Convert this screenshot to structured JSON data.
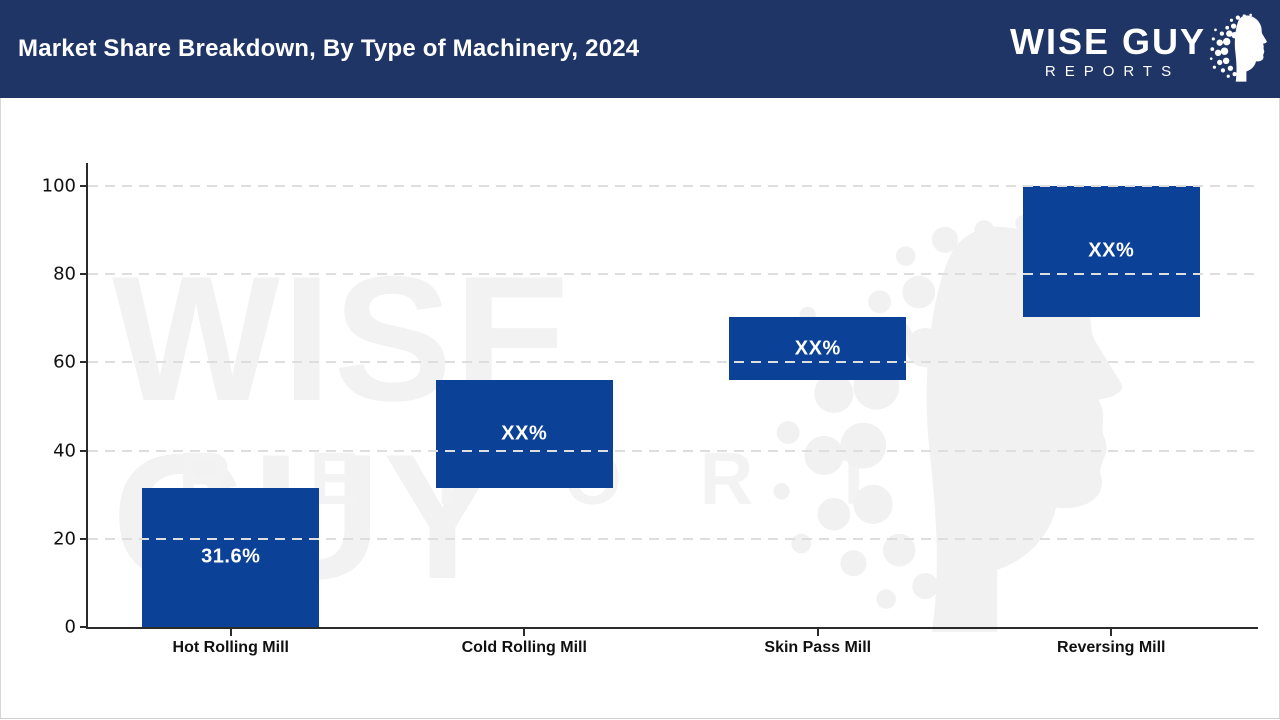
{
  "header": {
    "title": "Market Share Breakdown, By Type of Machinery, 2024",
    "logo": {
      "line1": "WISE GUY",
      "line2": "REPORTS"
    }
  },
  "watermark": {
    "line1": "WISE GUY",
    "line2": "REPORTS"
  },
  "colors": {
    "header_bg": "#1f3565",
    "bar": "#0b4298",
    "bar_label": "#ffffff",
    "gridline": "#dedede",
    "axis": "#2b2b2b",
    "watermark": "#f2f2f2"
  },
  "chart_data": {
    "type": "bar",
    "subtype": "waterfall",
    "title": "Market Share Breakdown, By Type of Machinery, 2024",
    "categories": [
      "Hot Rolling Mill",
      "Cold Rolling Mill",
      "Skin Pass Mill",
      "Reversing Mill"
    ],
    "segments": [
      {
        "category": "Hot Rolling Mill",
        "start": 0,
        "end": 31.6,
        "label": "31.6%"
      },
      {
        "category": "Cold Rolling Mill",
        "start": 31.6,
        "end": 55.9,
        "label": "XX%"
      },
      {
        "category": "Skin Pass Mill",
        "start": 55.9,
        "end": 70.3,
        "label": "XX%"
      },
      {
        "category": "Reversing Mill",
        "start": 70.3,
        "end": 100,
        "label": "XX%"
      }
    ],
    "xlabel": "",
    "ylabel": "",
    "yticks": [
      0,
      20,
      40,
      60,
      80,
      100
    ],
    "ylim": [
      0,
      105
    ],
    "grid": "horizontal-dashed",
    "legend": "none",
    "bar_color": "#0b4298",
    "bar_label_color": "#ffffff"
  }
}
